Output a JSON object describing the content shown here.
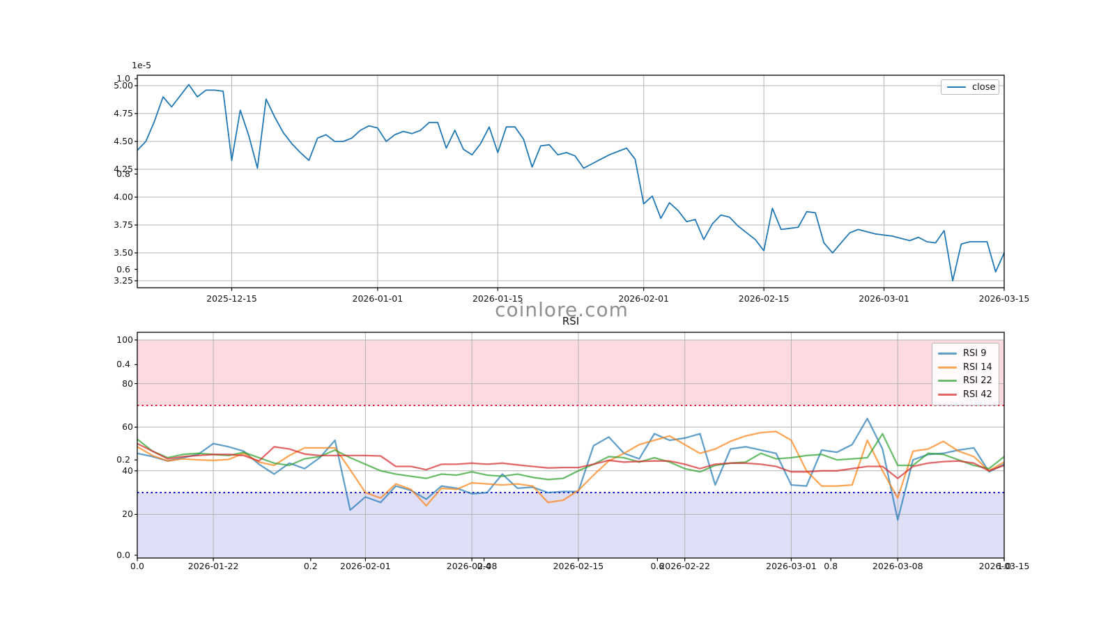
{
  "watermark": "coinlore.com",
  "hidden_axis_overlay": {
    "x_labels": [
      "0.0",
      "0.2",
      "0.4",
      "0.6",
      "0.8",
      "1.0"
    ],
    "y_labels": [
      "0.0",
      "0.2",
      "0.4",
      "0.6",
      "0.8",
      "1.0"
    ]
  },
  "chart_data": [
    {
      "type": "line",
      "title": "",
      "y_offset_text": "1e-5",
      "grid": true,
      "legend_position": "upper right",
      "x_start_date": "2025-12-04",
      "x_tick_labels": [
        "2025-12-15",
        "2026-01-01",
        "2026-01-15",
        "2026-02-01",
        "2026-02-15",
        "2026-03-01",
        "2026-03-15"
      ],
      "x_tick_day_index": [
        11,
        28,
        42,
        59,
        73,
        87,
        101
      ],
      "y_tick_labels": [
        "5.00",
        "4.75",
        "4.50",
        "4.25",
        "4.00",
        "3.75",
        "3.50",
        "3.25"
      ],
      "y_tick_values_1e5": [
        5.0,
        4.75,
        4.5,
        4.25,
        4.0,
        3.75,
        3.5,
        3.25
      ],
      "ylim_1e5": [
        3.1875,
        5.09375
      ],
      "series": [
        {
          "name": "close",
          "color": "#1f77b4",
          "values_1e5": [
            4.42,
            4.5,
            4.68,
            4.9,
            4.81,
            4.91,
            5.01,
            4.9,
            4.96,
            4.96,
            4.95,
            4.33,
            4.78,
            4.55,
            4.26,
            4.88,
            4.72,
            4.58,
            4.48,
            4.4,
            4.33,
            4.53,
            4.56,
            4.5,
            4.5,
            4.53,
            4.6,
            4.64,
            4.62,
            4.5,
            4.56,
            4.59,
            4.57,
            4.6,
            4.67,
            4.67,
            4.44,
            4.6,
            4.43,
            4.38,
            4.48,
            4.63,
            4.4,
            4.63,
            4.63,
            4.52,
            4.27,
            4.46,
            4.47,
            4.38,
            4.4,
            4.37,
            4.26,
            4.3,
            4.34,
            4.38,
            4.41,
            4.44,
            4.34,
            3.94,
            4.01,
            3.81,
            3.95,
            3.88,
            3.78,
            3.8,
            3.62,
            3.76,
            3.84,
            3.82,
            3.74,
            3.68,
            3.62,
            3.52,
            3.9,
            3.71,
            3.72,
            3.73,
            3.87,
            3.86,
            3.59,
            3.5,
            3.59,
            3.68,
            3.71,
            3.69,
            3.67,
            3.66,
            3.65,
            3.63,
            3.61,
            3.64,
            3.6,
            3.59,
            3.7,
            3.25,
            3.58,
            3.6,
            3.6,
            3.6,
            3.33,
            3.5
          ]
        }
      ]
    },
    {
      "type": "line",
      "title": "RSI",
      "grid": true,
      "legend_position": "upper right",
      "x_start_date": "2026-01-17",
      "x_tick_labels": [
        "2026-01-22",
        "2026-02-01",
        "2026-02-08",
        "2026-02-15",
        "2026-02-22",
        "2026-03-01",
        "2026-03-08",
        "2026-03-15"
      ],
      "x_tick_day_index": [
        5,
        15,
        22,
        29,
        36,
        43,
        50,
        57
      ],
      "y_tick_labels": [
        "100",
        "80",
        "60",
        "40",
        "20"
      ],
      "y_tick_values": [
        100,
        80,
        60,
        40,
        20
      ],
      "ylim": [
        0,
        103.5
      ],
      "overbought_level": 70,
      "oversold_level": 30,
      "overbought_band_color": "#fbdbe0",
      "oversold_band_color": "#dfdff7",
      "overbought_line_color": "#dd0022",
      "oversold_line_color": "#0000cc",
      "series": [
        {
          "name": "RSI 9",
          "color": "#1f77b4",
          "values": [
            48,
            46.5,
            44.5,
            46,
            47.5,
            52.5,
            51,
            49,
            43,
            38.5,
            43.5,
            41,
            46,
            54,
            22,
            28,
            25.5,
            33,
            31,
            27,
            33,
            32,
            29.5,
            30,
            38.5,
            32,
            32.5,
            30,
            30.5,
            30.5,
            51.5,
            55.5,
            48,
            45.5,
            57,
            54,
            55,
            57,
            33.5,
            50,
            51,
            49.5,
            48,
            33.5,
            33,
            49.5,
            48.5,
            52,
            64,
            50,
            17.5,
            45,
            47.5,
            48,
            49.5,
            50.5,
            39.5,
            43
          ]
        },
        {
          "name": "RSI 14",
          "color": "#ff7f0e",
          "values": [
            51,
            47,
            44.5,
            45.5,
            45,
            44.8,
            45.2,
            48,
            44,
            42.5,
            47,
            50.5,
            50.5,
            50.5,
            40.5,
            30,
            27.5,
            34,
            31.5,
            24,
            32,
            31.5,
            34.5,
            34,
            33.5,
            34,
            33,
            25.5,
            26.5,
            31,
            38,
            44.5,
            48,
            52,
            54,
            56,
            52,
            48,
            50,
            53.5,
            56,
            57.5,
            58,
            54,
            40,
            33,
            33,
            33.5,
            54,
            40,
            27.5,
            49,
            50,
            53.5,
            49,
            46.5,
            40,
            44
          ]
        },
        {
          "name": "RSI 22",
          "color": "#2ca02c",
          "values": [
            54.5,
            49,
            46,
            47.5,
            48,
            47.5,
            47,
            48.5,
            46,
            43.5,
            42.5,
            45.5,
            46.5,
            49.5,
            46,
            43,
            40,
            38.5,
            37.5,
            36.5,
            38.5,
            38,
            39.5,
            38,
            37.5,
            38.5,
            37,
            36,
            36.5,
            40,
            43,
            46.5,
            46,
            44,
            46,
            44,
            41,
            39.5,
            42.5,
            43.5,
            44,
            48,
            45.5,
            46,
            47,
            47.5,
            45,
            45.5,
            46,
            57,
            42.5,
            42.5,
            48,
            47.5,
            45,
            42.5,
            41,
            46.5
          ]
        },
        {
          "name": "RSI 42",
          "color": "#d62728",
          "values": [
            52.5,
            49,
            45.5,
            46.5,
            47,
            47.5,
            47.5,
            47,
            44.5,
            51,
            50,
            47.7,
            47,
            47,
            47,
            47,
            46.8,
            42,
            42,
            40.5,
            43,
            43,
            43.5,
            43,
            43.5,
            42.7,
            42,
            41.3,
            41.5,
            41.5,
            43,
            44.8,
            44,
            44.3,
            44.5,
            44.5,
            43,
            41,
            43,
            43.5,
            43.5,
            43,
            42,
            39.5,
            39.5,
            40,
            40,
            41,
            42,
            42,
            36.5,
            42,
            43.5,
            44.2,
            44.5,
            43.5,
            40,
            42.5
          ]
        }
      ]
    }
  ]
}
